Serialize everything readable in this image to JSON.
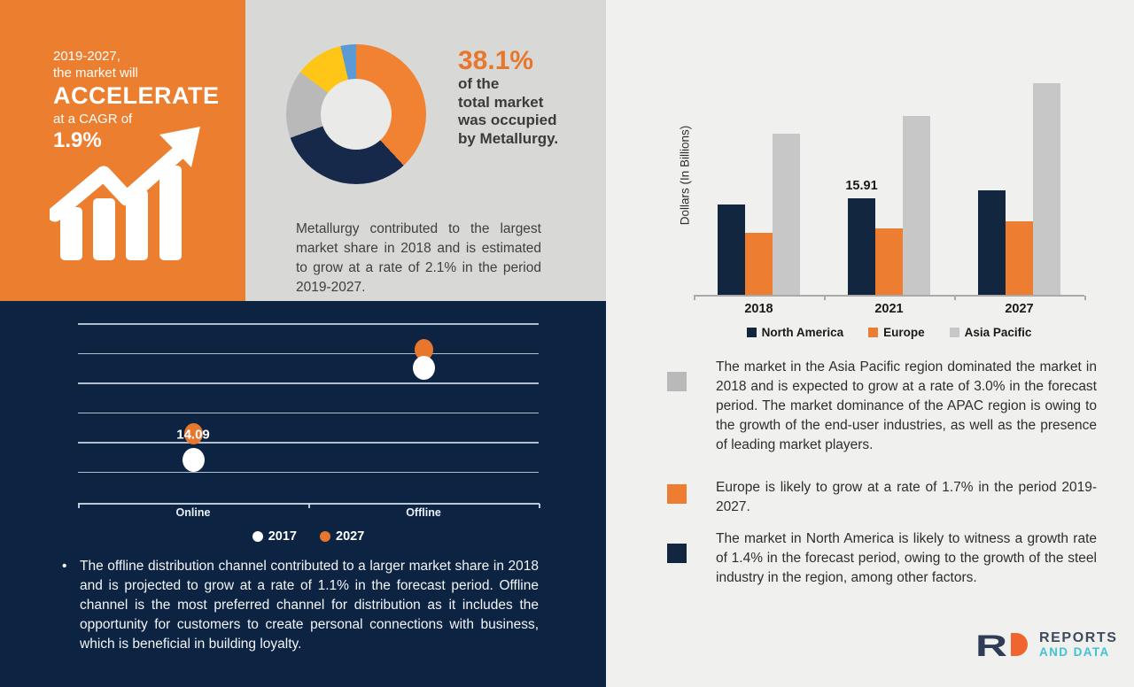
{
  "colors": {
    "orange": "#EC7E2F",
    "navy": "#0D2342",
    "panel_gray": "#D8D8D7",
    "panel_light": "#F0F0EE",
    "teal": "#41C2D4",
    "white": "#FFFFFF"
  },
  "promo_panel": {
    "line1": "2019-2027,",
    "line2": "the market will",
    "line3": "ACCELERATE",
    "line4": "at a CAGR of",
    "line5": "1.9%"
  },
  "metallurgy_panel": {
    "highlight_value": "38.1%",
    "highlight_lines": [
      "of the",
      "total market",
      "was occupied",
      "by Metallurgy."
    ],
    "body": "Metallurgy contributed to the largest market share in 2018 and is estimated to grow at a rate of 2.1% in the period 2019-2027."
  },
  "channel_panel": {
    "bullet_glyph": "•",
    "bullet": "The offline distribution channel contributed to a larger market share in 2018 and is projected to grow at a rate of 1.1% in the forecast period. Offline channel is the most preferred channel for distribution as it includes the opportunity for customers to create personal connections with business, which is beneficial in building loyalty."
  },
  "region_panel": {
    "bullets": [
      {
        "color": "#B9B9B9",
        "text": "The market in the Asia Pacific region dominated the market in 2018 and is expected to grow at a rate of 3.0% in the forecast period. The market dominance of the APAC region is owing to the growth of the end-user industries, as well as the presence of leading market players."
      },
      {
        "color": "#ED7D31",
        "text": "Europe is likely to grow at a rate of 1.7% in the period 2019-2027."
      },
      {
        "color": "#13263F",
        "text": "The market in North America is likely to witness a growth rate of 1.4% in the forecast period, owing to the growth of the steel industry in the region, among other factors."
      }
    ],
    "logo": {
      "reports": "REPORTS",
      "and_data": "AND DATA"
    }
  },
  "chart_data": [
    {
      "id": "metallurgy-donut",
      "type": "pie",
      "title": "",
      "segments": [
        {
          "label": "Metallurgy",
          "value": 38.1,
          "color": "#F08232"
        },
        {
          "label": "",
          "value": 31.4,
          "color": "#17294A"
        },
        {
          "label": "",
          "value": 15.8,
          "color": "#B9B9B9"
        },
        {
          "label": "",
          "value": 11.1,
          "color": "#FFC617"
        },
        {
          "label": "",
          "value": 3.6,
          "color": "#5B9BD5"
        }
      ]
    },
    {
      "id": "channel-dot-plot",
      "type": "scatter",
      "categories": [
        "Online",
        "Offline"
      ],
      "series": [
        {
          "name": "2017",
          "color": "#FFFFFF",
          "values": [
            13.2,
            16.3
          ]
        },
        {
          "name": "2027",
          "color": "#E8772E",
          "values": [
            14.09,
            16.9
          ]
        }
      ],
      "point_labels": [
        {
          "series": "2027",
          "category": "Online",
          "text": "14.09"
        }
      ],
      "ylim": [
        11.75,
        18.75
      ],
      "grid": true,
      "legend_position": "bottom"
    },
    {
      "id": "regional-bar-chart",
      "type": "bar",
      "categories": [
        "2018",
        "2021",
        "2027"
      ],
      "series": [
        {
          "name": "North America",
          "color": "#13263F",
          "values": [
            14.9,
            15.91,
            17.2
          ]
        },
        {
          "name": "Europe",
          "color": "#ED7D31",
          "values": [
            10.2,
            11.0,
            12.1
          ]
        },
        {
          "name": "Asia Pacific",
          "color": "#C7C7C7",
          "values": [
            26.6,
            29.5,
            34.9
          ]
        }
      ],
      "point_labels": [
        {
          "series": "North America",
          "category": "2021",
          "text": "15.91"
        }
      ],
      "ylabel": "Dollars (In Billions)",
      "ylim": [
        0,
        38
      ],
      "grid": false,
      "legend_position": "bottom"
    }
  ]
}
